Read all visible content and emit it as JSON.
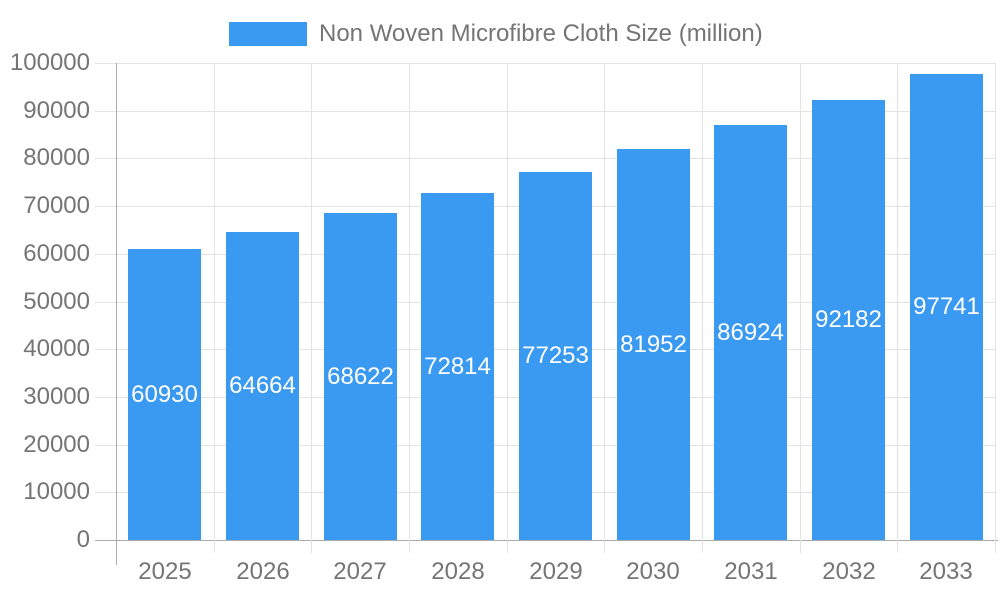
{
  "legend": {
    "label": "Non Woven Microfibre Cloth Size (million)"
  },
  "colors": {
    "bar": "#3A99F0",
    "bar_label": "#FFFFFF",
    "axis_line": "#ABABAB",
    "gridline": "#E3E3E3",
    "text": "#757575",
    "background": "#FFFFFF"
  },
  "chart_data": {
    "type": "bar",
    "title": "Non Woven Microfibre Cloth Size (million)",
    "categories": [
      "2025",
      "2026",
      "2027",
      "2028",
      "2029",
      "2030",
      "2031",
      "2032",
      "2033"
    ],
    "values": [
      60930,
      64664,
      68622,
      72814,
      77253,
      81952,
      86924,
      92182,
      97741
    ],
    "xlabel": "",
    "ylabel": "",
    "ylim": [
      0,
      100000
    ],
    "ytick_step": 10000,
    "yticks": [
      0,
      10000,
      20000,
      30000,
      40000,
      50000,
      60000,
      70000,
      80000,
      90000,
      100000
    ],
    "grid": true,
    "legend_position": "top",
    "value_label_position": "inside-middle"
  }
}
